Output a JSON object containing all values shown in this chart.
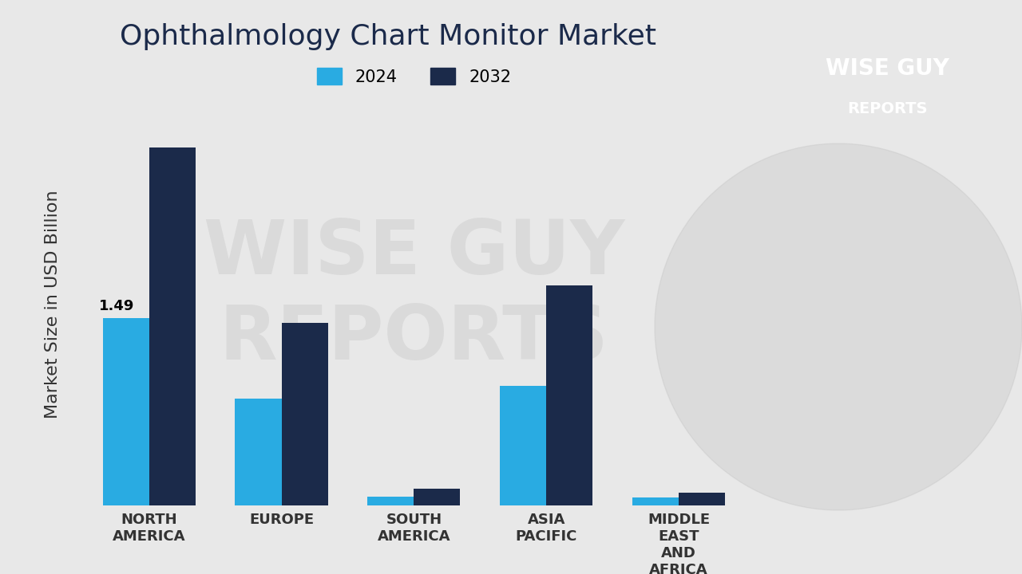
{
  "title": "Ophthalmology Chart Monitor Market",
  "ylabel": "Market Size in USD Billion",
  "categories": [
    "NORTH\nAMERICA",
    "EUROPE",
    "SOUTH\nAMERICA",
    "ASIA\nPACIFIC",
    "MIDDLE\nEAST\nAND\nAFRICA"
  ],
  "values_2024": [
    1.49,
    0.85,
    0.07,
    0.95,
    0.06
  ],
  "values_2032": [
    2.85,
    1.45,
    0.13,
    1.75,
    0.1
  ],
  "color_2024": "#29ABE2",
  "color_2032": "#1B2A4A",
  "annotation_value": "1.49",
  "annotation_index": 0,
  "bg_color": "#E8E8E8",
  "title_color": "#1B2A4A",
  "bar_width": 0.35,
  "legend_labels": [
    "2024",
    "2032"
  ],
  "ylim": [
    0,
    3.2
  ],
  "right_panel_color": "#1B2A4A",
  "title_fontsize": 26,
  "axis_label_fontsize": 16,
  "tick_label_fontsize": 13,
  "legend_fontsize": 15
}
